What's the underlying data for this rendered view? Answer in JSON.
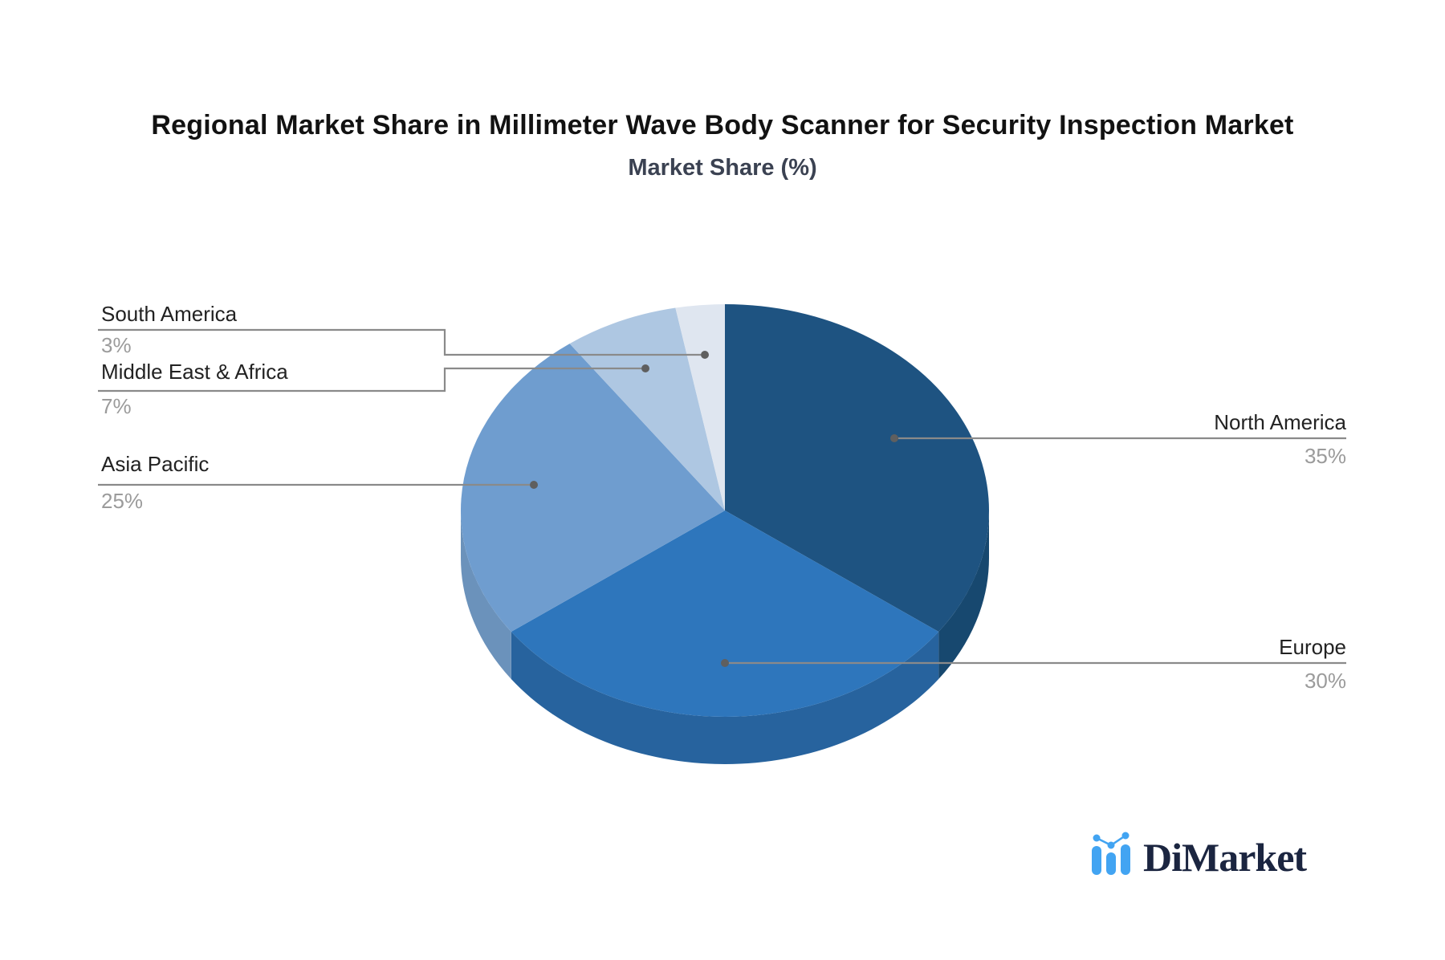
{
  "chart_data": {
    "type": "pie",
    "title": "Regional Market Share in Millimeter Wave Body Scanner for Security Inspection Market",
    "subtitle": "Market Share (%)",
    "unit": "%",
    "effect": "3d",
    "start_angle": "12-oclock",
    "direction": "clockwise",
    "legend_position": "callout-labels",
    "series": [
      {
        "name": "North America",
        "value": 35,
        "pct_label": "35%",
        "color": "#1e5381",
        "side_color": "#17486f",
        "label_side": "right"
      },
      {
        "name": "Europe",
        "value": 30,
        "pct_label": "30%",
        "color": "#2e76bc",
        "side_color": "#27639e",
        "label_side": "right"
      },
      {
        "name": "Asia Pacific",
        "value": 25,
        "pct_label": "25%",
        "color": "#6f9dcf",
        "side_color": "#6b92bb",
        "label_side": "left"
      },
      {
        "name": "Middle East & Africa",
        "value": 7,
        "pct_label": "7%",
        "color": "#aec7e2",
        "side_color": "#93afcb",
        "label_side": "left"
      },
      {
        "name": "South America",
        "value": 3,
        "pct_label": "3%",
        "color": "#dfe6f0",
        "side_color": "#c3cfde",
        "label_side": "left"
      }
    ],
    "colors": {
      "label_text": "#222222",
      "percent_text": "#9b9b9b",
      "leader_line": "#8a8a8a",
      "leader_dot": "#5f5f5f",
      "title_text": "#121212",
      "subtitle_text": "#3b4252"
    }
  },
  "branding": {
    "logo_text": "DiMarket",
    "logo_icon": "bar-chart-trend-icon",
    "logo_text_color": "#1b2540",
    "logo_icon_color": "#42a4f2"
  }
}
